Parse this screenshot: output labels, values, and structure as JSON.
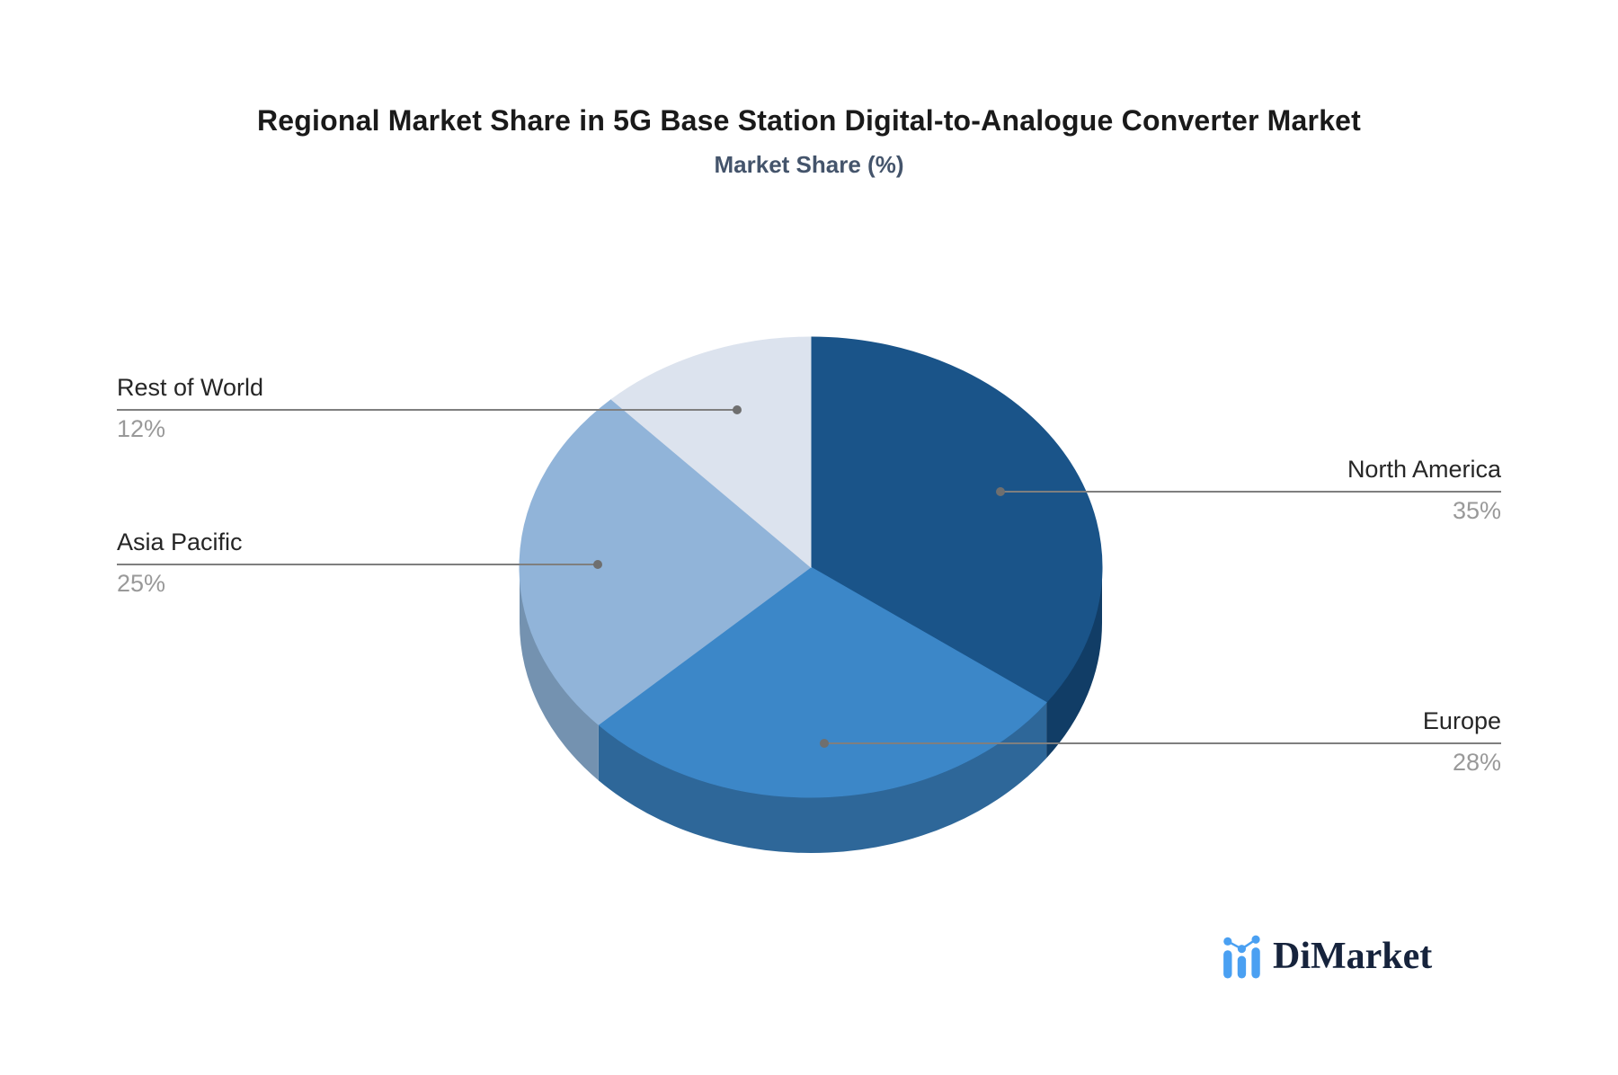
{
  "title": "Regional Market Share in 5G Base Station Digital-to-Analogue Converter Market",
  "subtitle": "Market Share (%)",
  "brand": {
    "name": "DiMarket",
    "icon": "bar-chart-logo-icon",
    "icon_color": "#4aa0f2",
    "text_color": "#16233c"
  },
  "chart_data": {
    "type": "pie",
    "effect": "3d",
    "unit": "%",
    "title": "Regional Market Share in 5G Base Station Digital-to-Analogue Converter Market",
    "subtitle": "Market Share (%)",
    "start_angle_deg": 0,
    "direction": "clockwise",
    "legend_position": "outside-leader-lines",
    "leader_line_color": "#7f7f7f",
    "leader_dot_color": "#6f6f6f",
    "label_name_color": "#262626",
    "label_pct_color": "#999999",
    "slices": [
      {
        "label": "North America",
        "value": 35,
        "pct_label": "35%",
        "color": "#1a5489",
        "side_color": "#113d66"
      },
      {
        "label": "Europe",
        "value": 28,
        "pct_label": "28%",
        "color": "#3c87c8",
        "side_color": "#2e6799"
      },
      {
        "label": "Asia Pacific",
        "value": 25,
        "pct_label": "25%",
        "color": "#91b4d9",
        "side_color": "#7492b0"
      },
      {
        "label": "Rest of World",
        "value": 12,
        "pct_label": "12%",
        "color": "#dce3ee",
        "side_color": "#b9c4d6"
      }
    ]
  }
}
